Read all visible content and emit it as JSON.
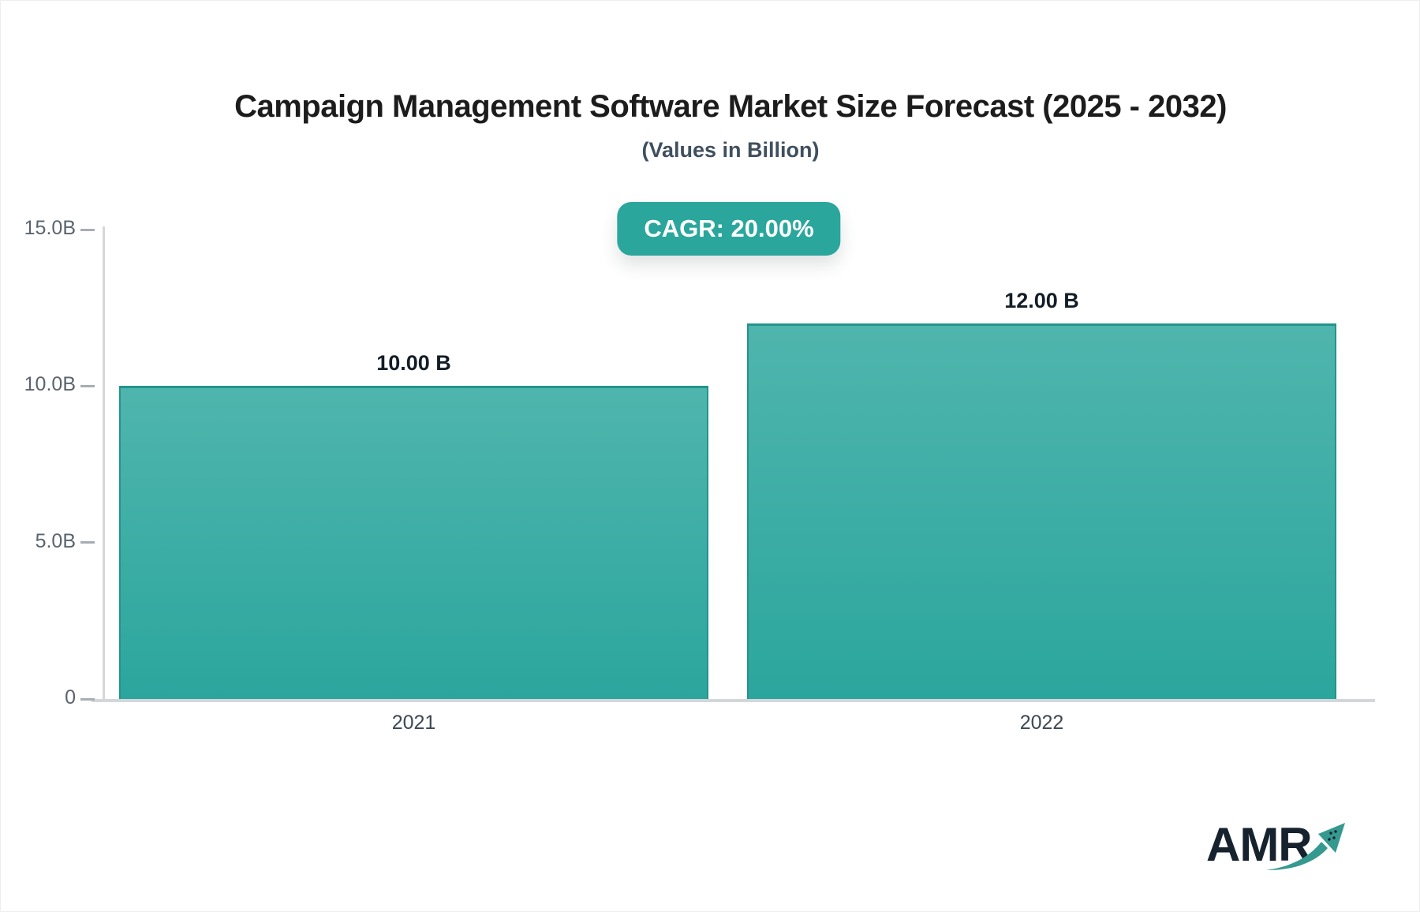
{
  "header": {
    "title": "Campaign Management Software Market Size Forecast (2025 - 2032)",
    "subtitle": "(Values in Billion)"
  },
  "badge": {
    "label": "CAGR: 20.00%",
    "background": "#2BA69D",
    "text_color": "#FFFFFF"
  },
  "chart_data": {
    "type": "bar",
    "title": "Campaign Management Software Market Size Forecast (2025 - 2032)",
    "subtitle": "(Values in Billion)",
    "cagr": "20.00%",
    "categories": [
      "2021",
      "2022"
    ],
    "values": [
      10.0,
      12.0
    ],
    "value_labels": [
      "10.00 B",
      "12.00 B"
    ],
    "xlabel": "",
    "ylabel": "",
    "ylim": [
      0,
      15
    ],
    "yticks": [
      {
        "value": 15,
        "label": "15.0B"
      },
      {
        "value": 10,
        "label": "10.0B"
      },
      {
        "value": 5,
        "label": "5.0B"
      },
      {
        "value": 0,
        "label": "0"
      }
    ],
    "grid": false,
    "legend": false,
    "bar_color_top": "#4FB5AD",
    "bar_color_bottom": "#2BA69D",
    "bar_border": "#23948D",
    "axis_color": "#D4D8DD"
  },
  "logo": {
    "text": "AMR",
    "text_color": "#16222E",
    "arrow_color": "#35998F"
  }
}
